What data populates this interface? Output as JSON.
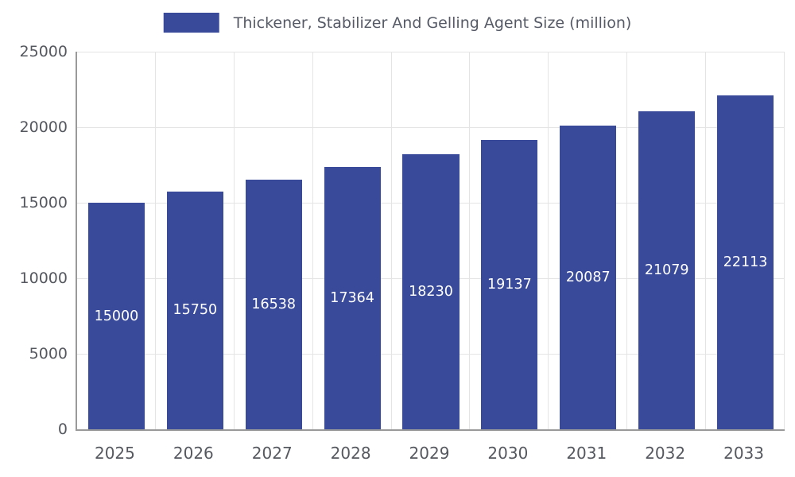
{
  "chart_data": {
    "type": "bar",
    "title": "Thickener, Stabilizer And Gelling Agent Size (million)",
    "legend_entries": [
      "Thickener, Stabilizer And Gelling Agent Size (million)"
    ],
    "legend_position": "top",
    "categories": [
      "2025",
      "2026",
      "2027",
      "2028",
      "2029",
      "2030",
      "2031",
      "2032",
      "2033"
    ],
    "values": [
      15000,
      15750,
      16538,
      17364,
      18230,
      19137,
      20087,
      21079,
      22113
    ],
    "xlabel": "",
    "ylabel": "",
    "ylim": [
      0,
      25000
    ],
    "yticks": [
      0,
      5000,
      10000,
      15000,
      20000,
      25000
    ],
    "grid": true,
    "bar_color": "#3A4A9B",
    "value_label_color": "#ffffff",
    "axis_text_color": "#55585f",
    "gridline_color": "#e4e4e4"
  }
}
